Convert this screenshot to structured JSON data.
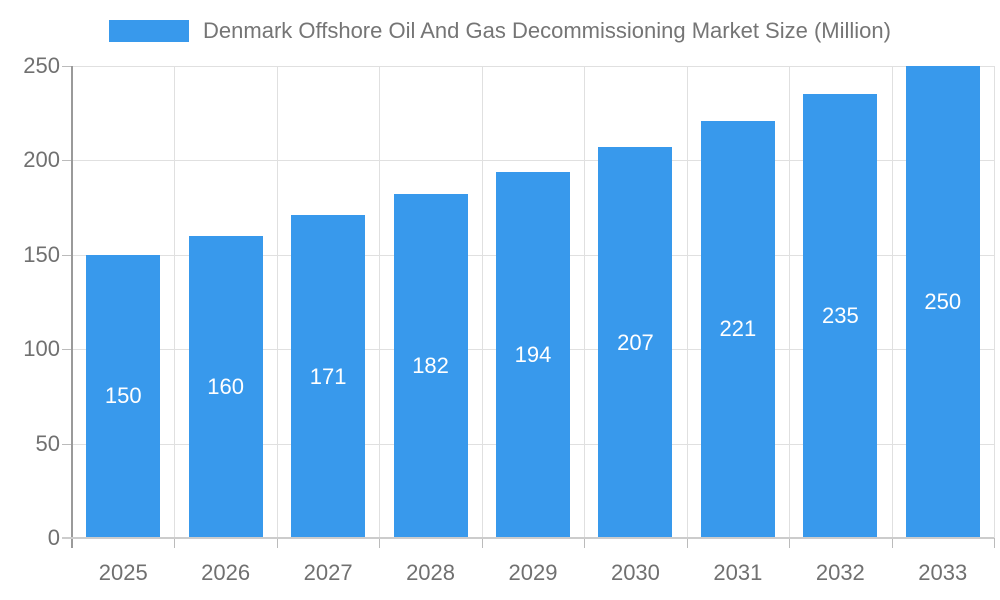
{
  "chart_data": {
    "type": "bar",
    "title": "Denmark Offshore Oil And Gas Decommissioning Market Size (Million)",
    "categories": [
      "2025",
      "2026",
      "2027",
      "2028",
      "2029",
      "2030",
      "2031",
      "2032",
      "2033"
    ],
    "values": [
      150,
      160,
      171,
      182,
      194,
      207,
      221,
      235,
      250
    ],
    "xlabel": "",
    "ylabel": "",
    "ylim": [
      0,
      250
    ],
    "yticks": [
      0,
      50,
      100,
      150,
      200,
      250
    ],
    "grid": true,
    "legend_position": "top",
    "bar_color": "#3899EC",
    "value_label_color": "#ffffff",
    "axis_text_color": "#707070",
    "title_text_color": "#757575",
    "gridline_color": "#e0e0e0"
  }
}
